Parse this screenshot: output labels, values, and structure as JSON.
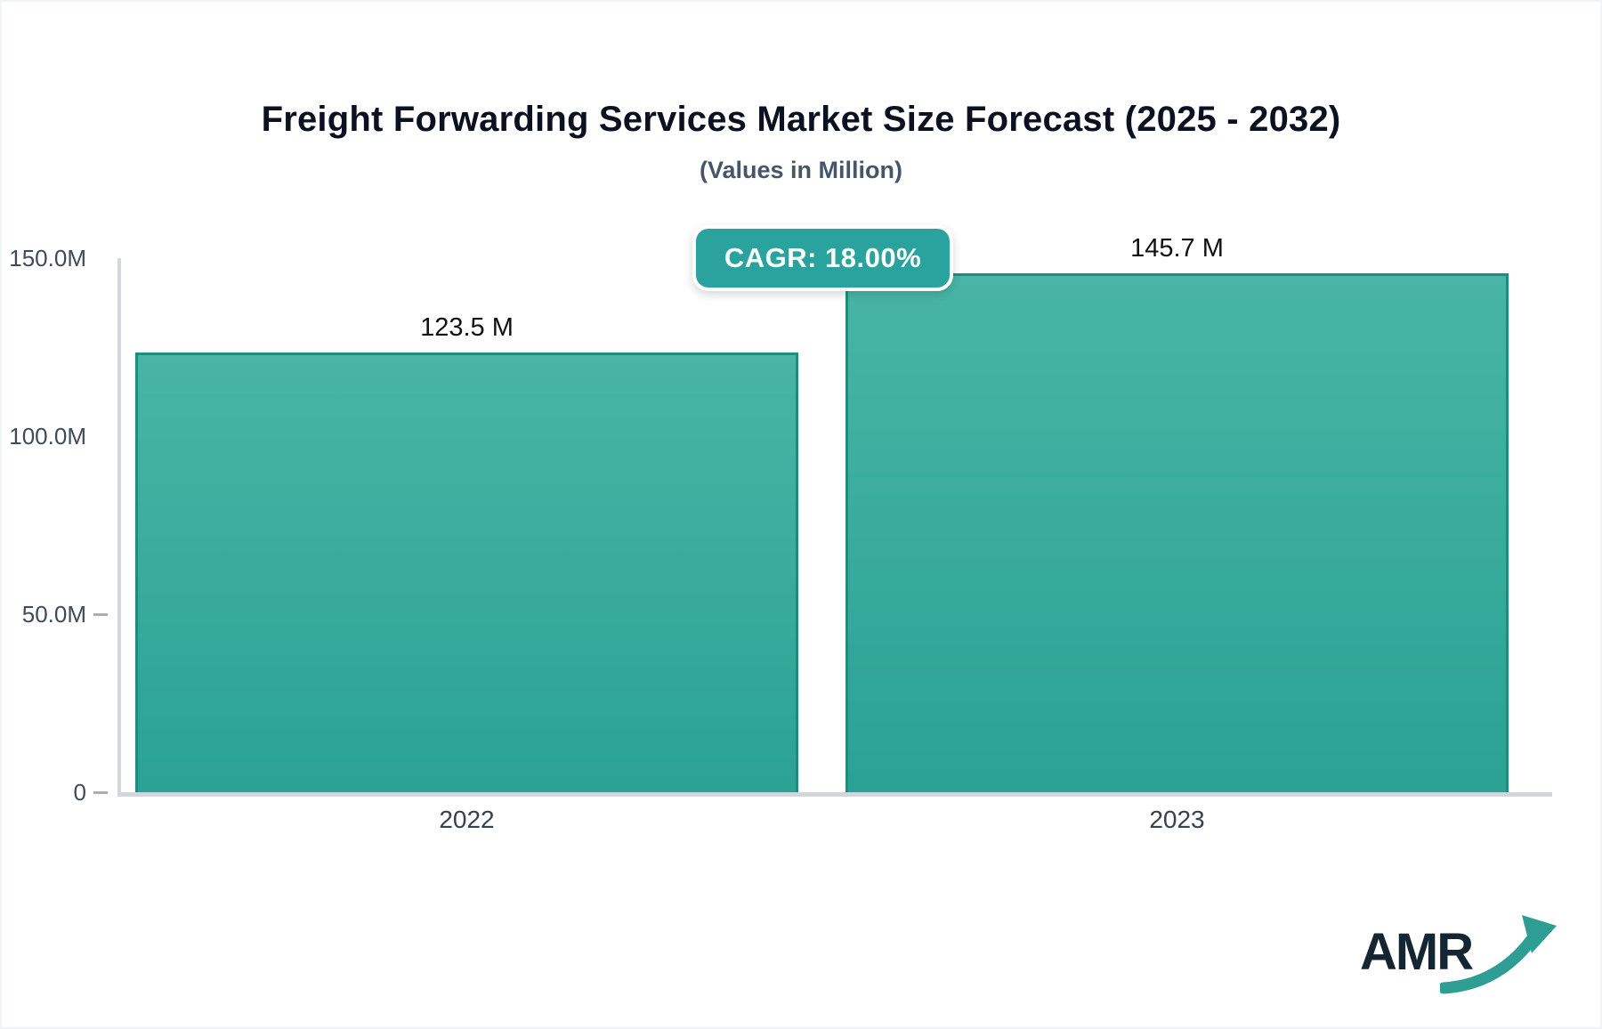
{
  "header": {
    "title": "Freight Forwarding Services Market Size Forecast (2025 - 2032)",
    "subtitle": "(Values in Million)"
  },
  "badge": {
    "label": "CAGR: 18.00%"
  },
  "logo": {
    "text": "AMR",
    "arrow_icon": "growth-arrow-icon"
  },
  "colors": {
    "bar_top": "#48b5a6",
    "bar_bottom": "#2aa294",
    "bar_edge": "#1f8c80",
    "badge_bg": "#2aa39e",
    "badge_text": "#ffffff",
    "axis_line": "#d2d6dd",
    "title": "#0b1120",
    "subtitle": "#475569",
    "ylabel": "#3f4a5b",
    "xlabel": "#36404f",
    "logo_arrow": "#2e9d94"
  },
  "chart_data": {
    "type": "bar",
    "title": "Freight Forwarding Services Market Size Forecast (2025 - 2032)",
    "subtitle": "(Values in Million)",
    "unit": "Million",
    "cagr_label": "CAGR: 18.00%",
    "categories": [
      "2022",
      "2023"
    ],
    "values": [
      123.5,
      145.7
    ],
    "value_labels": [
      "123.5 M",
      "145.7 M"
    ],
    "ylim": [
      0,
      150
    ],
    "yticks": [
      {
        "label": "150.0M",
        "value": 150,
        "dash": false
      },
      {
        "label": "100.0M",
        "value": 100,
        "dash": false
      },
      {
        "label": "50.0M",
        "value": 50,
        "dash": true
      },
      {
        "label": "0",
        "value": 0,
        "dash": true
      }
    ],
    "grid": false,
    "legend": "none",
    "bar_gradient": [
      "#48b5a6",
      "#2aa294"
    ]
  }
}
